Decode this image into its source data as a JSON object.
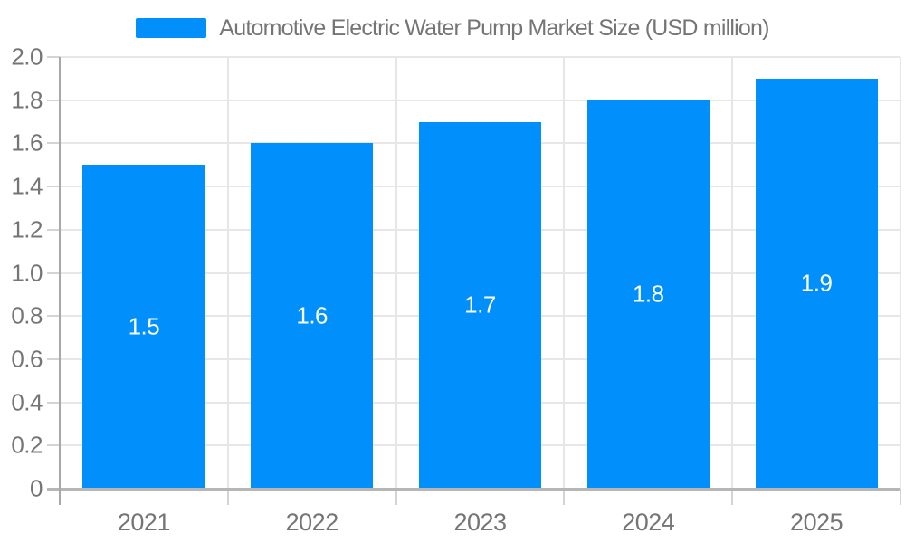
{
  "legend": {
    "label": "Automotive Electric Water Pump Market Size (USD million)"
  },
  "chart_data": {
    "type": "bar",
    "title": "Automotive Electric Water Pump Market Size (USD million)",
    "categories": [
      "2021",
      "2022",
      "2023",
      "2024",
      "2025"
    ],
    "values": [
      1.5,
      1.6,
      1.7,
      1.8,
      1.9
    ],
    "data_labels": [
      "1.5",
      "1.6",
      "1.7",
      "1.8",
      "1.9"
    ],
    "xlabel": "",
    "ylabel": "",
    "ylim": [
      0,
      2.0
    ],
    "ytick_step": 0.2,
    "ytick_labels": [
      "0",
      "0.2",
      "0.4",
      "0.6",
      "0.8",
      "1.0",
      "1.2",
      "1.4",
      "1.6",
      "1.8",
      "2.0"
    ],
    "grid": true,
    "legend_position": "top",
    "colors": {
      "bar": "#008FFB",
      "data_label": "#FFFFFF",
      "axis_text": "#757575",
      "grid_line": "#E7E7E7",
      "axis_line": "#A8A8A8",
      "baseline": "#B6B6B6",
      "tick": "#D4D4D4",
      "background": "#FFFFFF"
    }
  }
}
